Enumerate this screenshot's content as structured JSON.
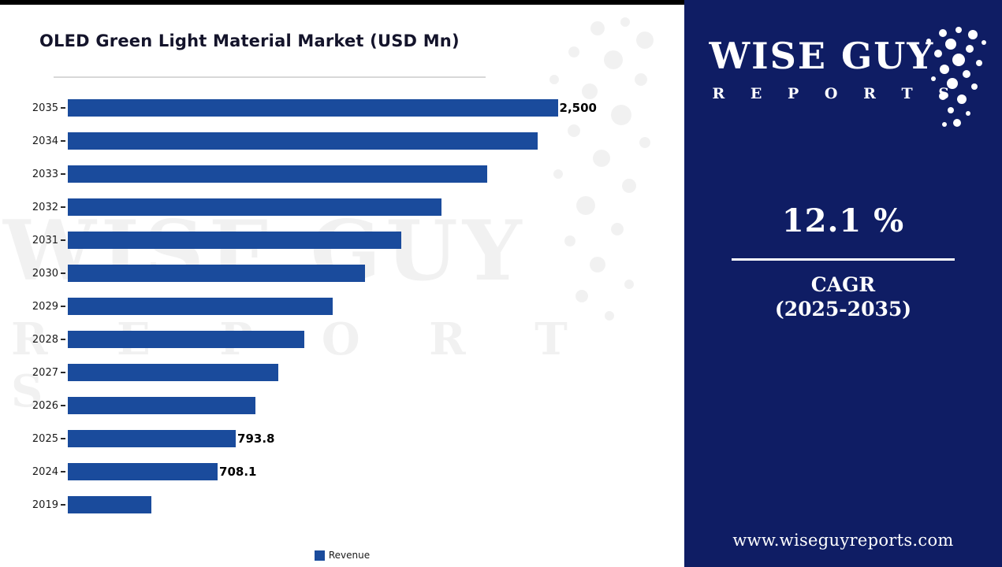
{
  "chart": {
    "title": "OLED Green Light Material Market (USD Mn)",
    "legend_label": "Revenue"
  },
  "chart_data": {
    "type": "bar",
    "orientation": "horizontal",
    "title": "OLED Green Light Material Market (USD Mn)",
    "xlabel": "",
    "ylabel": "",
    "xlim": [
      0,
      2500
    ],
    "grid": false,
    "legend": [
      "Revenue"
    ],
    "legend_position": "bottom",
    "bar_color": "#1a4b9c",
    "categories": [
      "2035",
      "2034",
      "2033",
      "2032",
      "2031",
      "2030",
      "2029",
      "2028",
      "2027",
      "2026",
      "2025",
      "2024",
      "2019"
    ],
    "values": [
      2500,
      2220,
      1982,
      1766,
      1576,
      1405,
      1252,
      1118,
      995,
      887,
      793.8,
      708.1,
      395
    ],
    "value_labels": [
      "2,500",
      "",
      "",
      "",
      "",
      "",
      "",
      "",
      "",
      "",
      "793.8",
      "708.1",
      ""
    ]
  },
  "sidebar": {
    "logo_line1": "WISE GUY",
    "logo_line2": "R E P O R T S",
    "cagr_value": "12.1 %",
    "cagr_label": "CAGR",
    "cagr_period": "(2025-2035)",
    "website": "www.wiseguyreports.com",
    "background_color": "#0f1d64"
  },
  "watermark": {
    "line1": "WISE GUY",
    "line2": "R E P O R T S"
  }
}
